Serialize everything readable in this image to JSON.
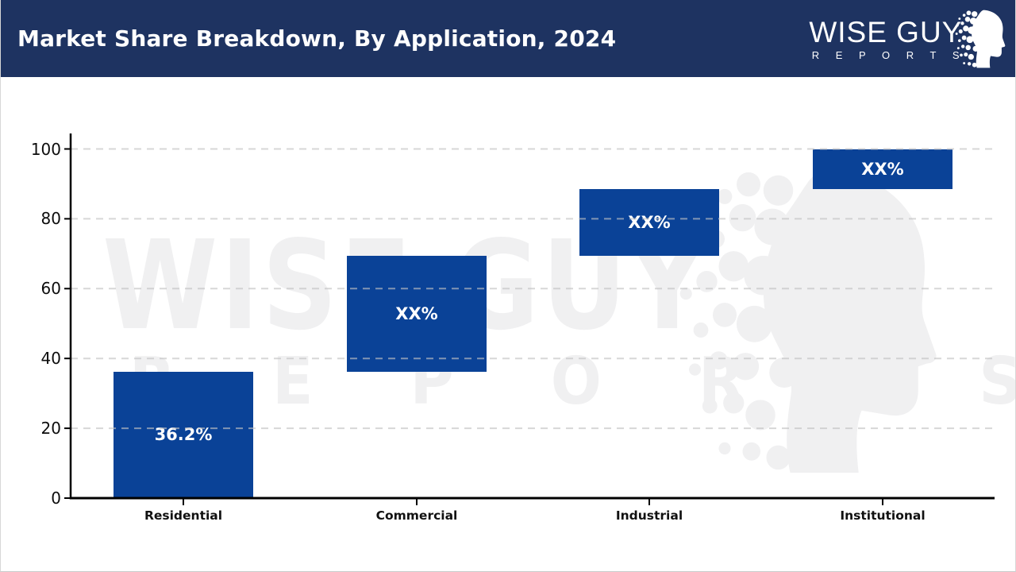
{
  "header": {
    "title": "Market Share Breakdown, By Application, 2024",
    "logo": {
      "line1": "WISE GUY",
      "line2": "R E P O R T S"
    }
  },
  "watermark": {
    "line1": "WISE GUY",
    "line2": "R E P O R T S"
  },
  "chart_data": {
    "type": "bar",
    "subtype": "floating-waterfall",
    "title": "Market Share Breakdown, By Application, 2024",
    "categories": [
      "Residential",
      "Commercial",
      "Industrial",
      "Institutional"
    ],
    "series": [
      {
        "name": "Market share (%)",
        "segments": [
          {
            "category": "Residential",
            "start": 0,
            "end": 36.2,
            "label": "36.2%"
          },
          {
            "category": "Commercial",
            "start": 36.2,
            "end": 69.5,
            "label": "XX%"
          },
          {
            "category": "Industrial",
            "start": 69.5,
            "end": 88.6,
            "label": "XX%"
          },
          {
            "category": "Institutional",
            "start": 88.6,
            "end": 100,
            "label": "XX%"
          }
        ]
      }
    ],
    "xlabel": "",
    "ylabel": "",
    "ylim": [
      0,
      100
    ],
    "yticks": [
      0,
      20,
      40,
      60,
      80,
      100
    ],
    "grid": "horizontal-dashed",
    "legend": "none"
  },
  "colors": {
    "header_bg": "#1e3361",
    "bar": "#0a4297",
    "bar_label": "#ffffff",
    "axis": "#000000",
    "grid": "#c2c2c2",
    "watermark": "#f0f0f1"
  }
}
